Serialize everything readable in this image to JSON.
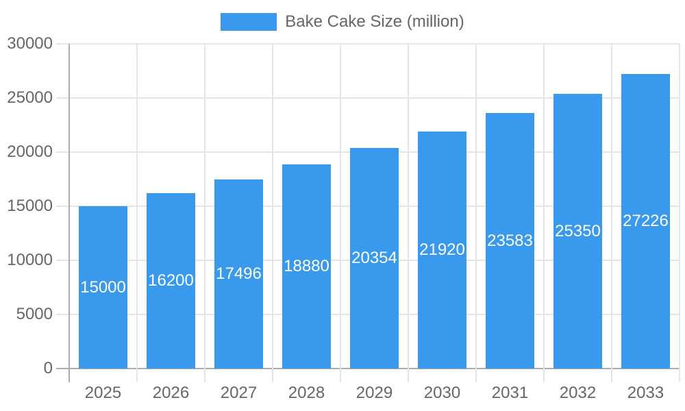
{
  "legend": {
    "label": "Bake Cake Size (million)"
  },
  "chart_data": {
    "type": "bar",
    "title": "Bake Cake Size (million)",
    "xlabel": "",
    "ylabel": "",
    "categories": [
      "2025",
      "2026",
      "2027",
      "2028",
      "2029",
      "2030",
      "2031",
      "2032",
      "2033"
    ],
    "series": [
      {
        "name": "Bake Cake Size (million)",
        "values": [
          15000,
          16200,
          17496,
          18880,
          20354,
          21920,
          23583,
          25350,
          27226
        ]
      }
    ],
    "value_labels_shown": true,
    "ylim": [
      0,
      30000
    ],
    "yticks": [
      0,
      5000,
      10000,
      15000,
      20000,
      25000,
      30000
    ],
    "grid": true,
    "legend_position": "top-center"
  },
  "colors": {
    "bar": "#3999EC",
    "grid_line": "#E5E5E5",
    "axis_line": "#ABABAB",
    "tick_text": "#666666",
    "legend_text": "#666666",
    "value_label_text": "#FFFFFF",
    "background": "#FFFFFF"
  }
}
